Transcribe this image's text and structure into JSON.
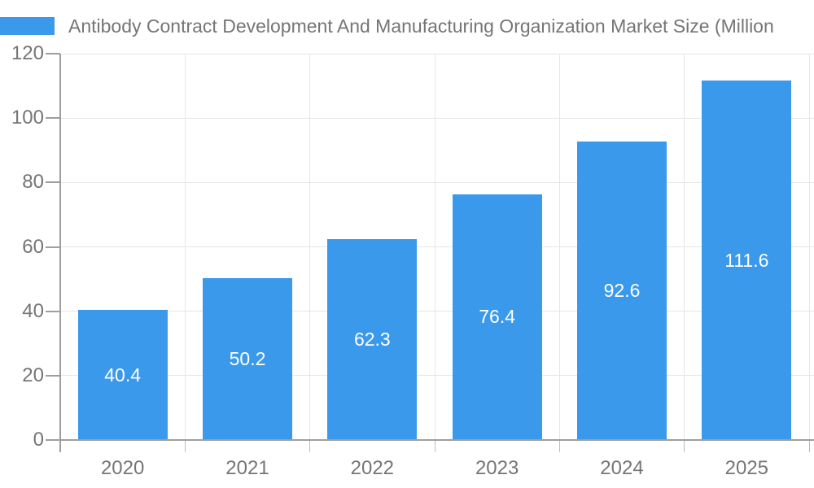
{
  "header": {
    "title": "Antibody Contract Development And Manufacturing Organization Market Size (Million"
  },
  "chart_data": {
    "type": "bar",
    "title": "Antibody Contract Development And Manufacturing Organization Market Size (Million",
    "title_truncated_at_right_edge": true,
    "categories": [
      "2020",
      "2021",
      "2022",
      "2023",
      "2024",
      "2025"
    ],
    "values": [
      40.4,
      50.2,
      62.3,
      76.4,
      92.6,
      111.6
    ],
    "value_labels": [
      "40.4",
      "50.2",
      "62.3",
      "76.4",
      "92.6",
      "111.6"
    ],
    "xlabel": "",
    "ylabel": "",
    "ylim": [
      0,
      120
    ],
    "yticks": [
      0,
      20,
      40,
      60,
      80,
      100,
      120
    ],
    "grid": true,
    "legend_position": "top-left",
    "value_label_position": "inside-center",
    "colors": {
      "bar": "#3b99ec",
      "value_label": "#ffffff",
      "title": "#757575",
      "tick_label": "#757575",
      "axis_line": "#9e9e9e",
      "gridline": "#e6e6e6",
      "tick_below_axis": "#bdbdbd",
      "background": "#ffffff"
    }
  }
}
